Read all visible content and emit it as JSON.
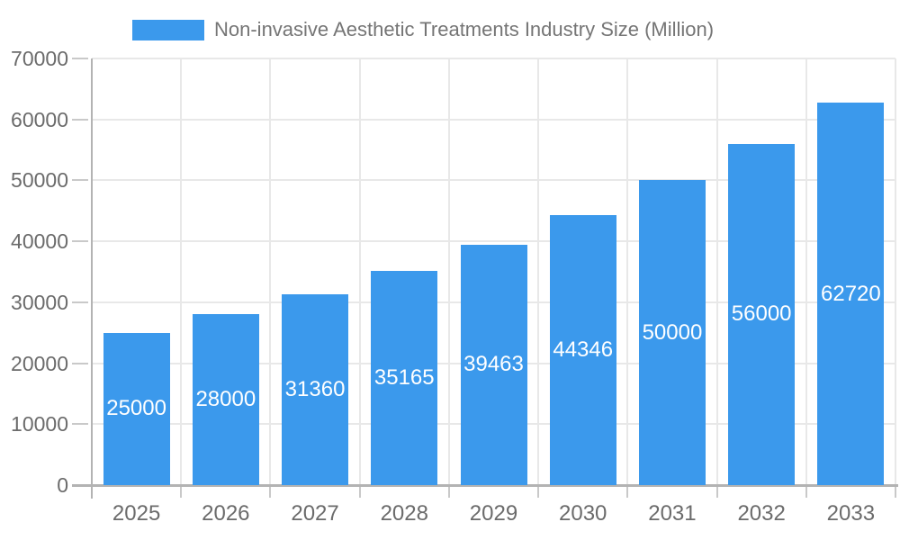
{
  "chart_data": {
    "type": "bar",
    "title": "Non-invasive Aesthetic Treatments Industry Size (Million)",
    "legend_position": "top",
    "categories": [
      "2025",
      "2026",
      "2027",
      "2028",
      "2029",
      "2030",
      "2031",
      "2032",
      "2033"
    ],
    "values": [
      25000,
      28000,
      31360,
      35165,
      39463,
      44346,
      50000,
      56000,
      62720
    ],
    "value_labels": [
      "25000",
      "28000",
      "31360",
      "35165",
      "39463",
      "44346",
      "50000",
      "56000",
      "62720"
    ],
    "xlabel": "",
    "ylabel": "",
    "ylim": [
      0,
      70000
    ],
    "ytick_step": 10000,
    "grid": true,
    "colors": {
      "bar": "#3B99EC",
      "value_label": "#FFFFFF",
      "gridline": "#E8E8E8",
      "axis_line": "#B3B3B3",
      "tick": "#C9C9C9",
      "axis_text": "#6B6B6B",
      "legend_text": "#757575"
    }
  }
}
